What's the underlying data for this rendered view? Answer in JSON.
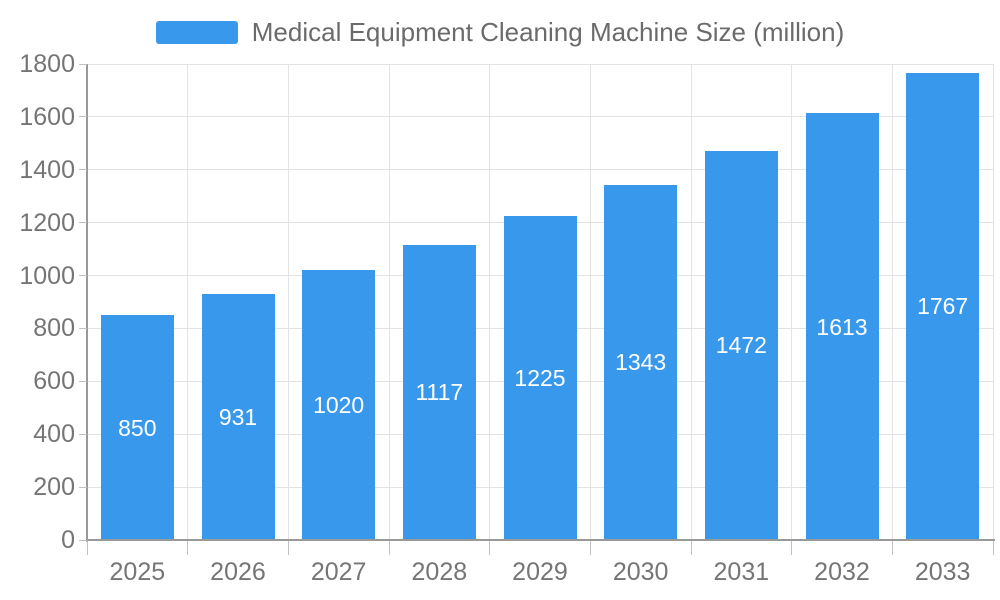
{
  "chart_data": {
    "type": "bar",
    "title": "Medical Equipment Cleaning Machine Size (million)",
    "legend_entries": [
      "Medical Equipment Cleaning Machine Size (million)"
    ],
    "categories": [
      "2025",
      "2026",
      "2027",
      "2028",
      "2029",
      "2030",
      "2031",
      "2032",
      "2033"
    ],
    "series": [
      {
        "name": "Medical Equipment Cleaning Machine Size (million)",
        "values": [
          850,
          931,
          1020,
          1117,
          1225,
          1343,
          1472,
          1613,
          1767
        ]
      }
    ],
    "data_labels_shown": true,
    "xlabel": "",
    "ylabel": "",
    "ylim": [
      0,
      1800
    ],
    "ytick_step": 200,
    "ytick_labels": [
      "0",
      "200",
      "400",
      "600",
      "800",
      "1000",
      "1200",
      "1400",
      "1600",
      "1800"
    ],
    "grid": true,
    "legend_position": "top",
    "colors": {
      "bar": "#3898ec",
      "bar_value_text": "#ffffff",
      "gridline": "#e3e3e3",
      "axis_line": "#999999",
      "tick": "#c2c2c2",
      "axis_text": "#757575",
      "legend_text": "#6b6b6b",
      "background": "#ffffff"
    }
  }
}
